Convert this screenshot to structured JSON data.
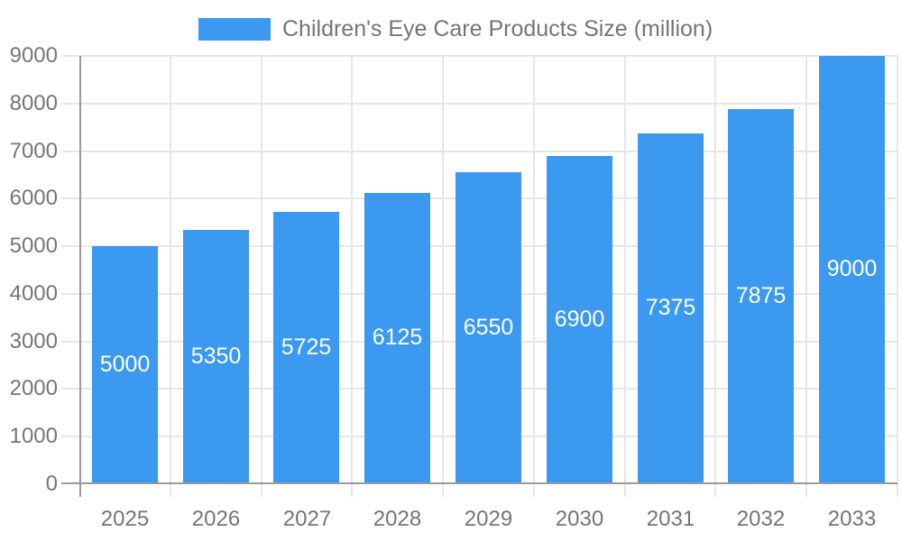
{
  "legend": {
    "label": "Children's Eye Care Products Size (million)"
  },
  "colors": {
    "bar": "#3b99f0",
    "grid": "#e6e6e6",
    "axis": "#9a9a9a",
    "text": "#757575",
    "value_text": "#ffffff",
    "background": "#ffffff"
  },
  "chart_data": {
    "type": "bar",
    "title": "Children's Eye Care Products Size (million)",
    "series": [
      {
        "name": "Children's Eye Care Products Size (million)",
        "values": [
          5000,
          5350,
          5725,
          6125,
          6550,
          6900,
          7375,
          7875,
          9000
        ]
      }
    ],
    "categories": [
      "2025",
      "2026",
      "2027",
      "2028",
      "2029",
      "2030",
      "2031",
      "2032",
      "2033"
    ],
    "values": [
      5000,
      5350,
      5725,
      6125,
      6550,
      6900,
      7375,
      7875,
      9000
    ],
    "xlabel": "",
    "ylabel": "",
    "ylim": [
      0,
      9000
    ],
    "yticks": [
      0,
      1000,
      2000,
      3000,
      4000,
      5000,
      6000,
      7000,
      8000,
      9000
    ],
    "grid": true,
    "legend_position": "top",
    "value_labels_shown": true,
    "value_label_position": "inside-center"
  }
}
